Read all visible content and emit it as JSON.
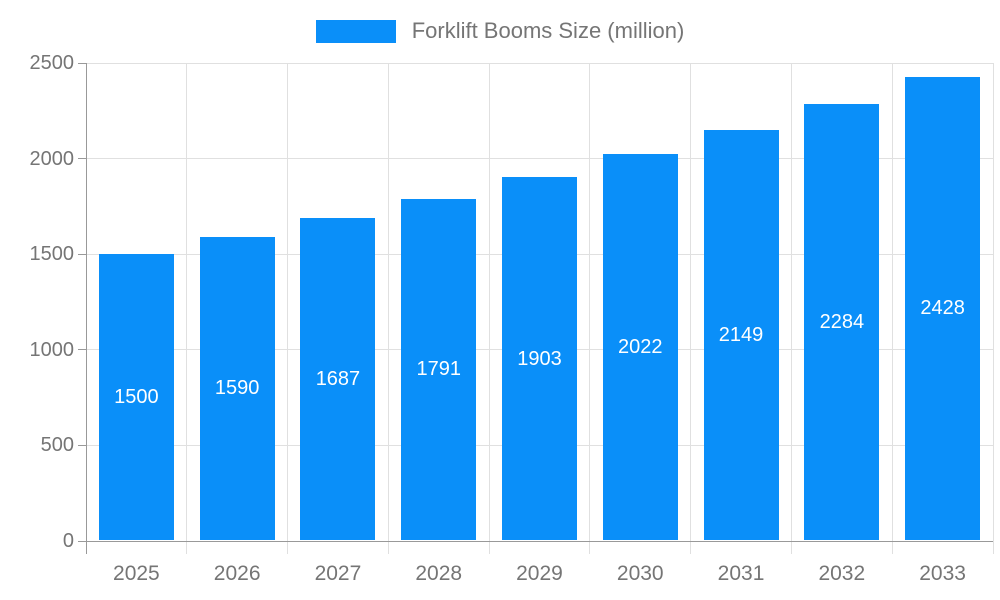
{
  "chart_data": {
    "type": "bar",
    "title": "Forklift Booms Size (million)",
    "legend": {
      "label": "Forklift Booms Size (million)",
      "position": "top"
    },
    "categories": [
      "2025",
      "2026",
      "2027",
      "2028",
      "2029",
      "2030",
      "2031",
      "2032",
      "2033"
    ],
    "values": [
      1500,
      1590,
      1687,
      1791,
      1903,
      2022,
      2149,
      2284,
      2428
    ],
    "xlabel": "",
    "ylabel": "",
    "ylim": [
      0,
      2500
    ],
    "yticks": [
      0,
      500,
      1000,
      1500,
      2000,
      2500
    ],
    "grid": true,
    "colors": {
      "bar": "#0a8ff9",
      "bar_label": "#ffffff",
      "axis": "#999999",
      "gridline": "#e0e0e0",
      "tick_text": "#757575"
    }
  }
}
